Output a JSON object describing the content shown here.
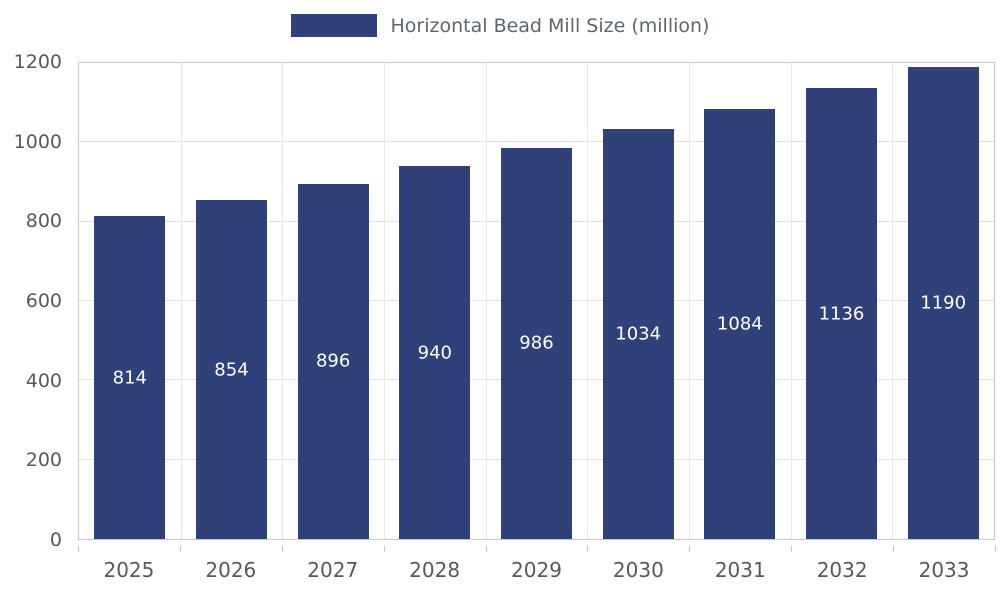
{
  "chart_data": {
    "type": "bar",
    "title": "Horizontal Bead Mill Size (million)",
    "categories": [
      "2025",
      "2026",
      "2027",
      "2028",
      "2029",
      "2030",
      "2031",
      "2032",
      "2033"
    ],
    "values": [
      814,
      854,
      896,
      940,
      986,
      1034,
      1084,
      1136,
      1190
    ],
    "xlabel": "",
    "ylabel": "",
    "ylim": [
      0,
      1200
    ],
    "yticks": [
      0,
      200,
      400,
      600,
      800,
      1000,
      1200
    ],
    "grid": true,
    "legend_position": "top",
    "bar_color": "#30417a",
    "bar_label_color": "#ffffff",
    "axis_text_color": "#595959",
    "grid_color": "#e2e2e2"
  }
}
